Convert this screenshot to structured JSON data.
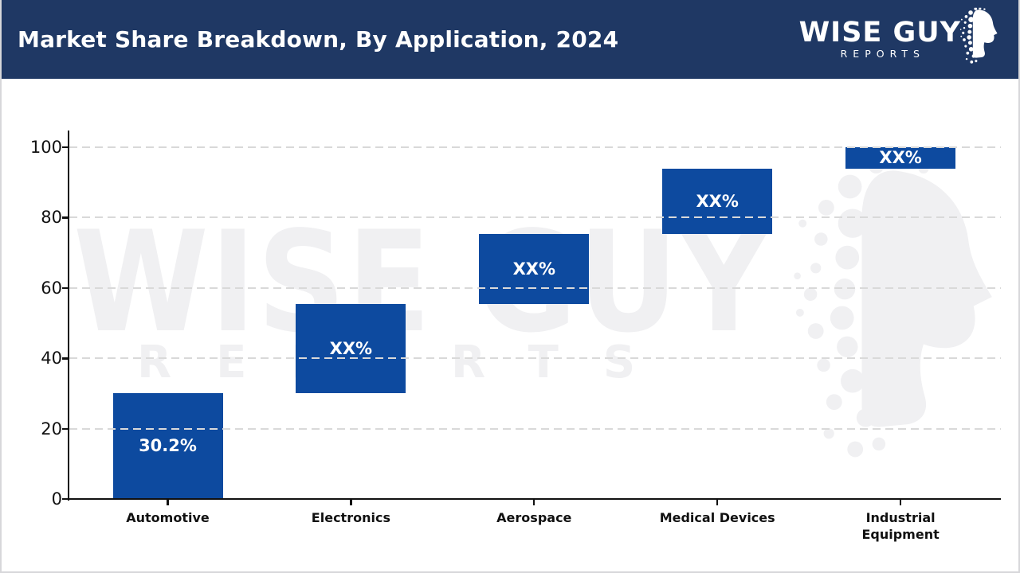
{
  "header": {
    "title": "Market Share Breakdown, By Application, 2024",
    "bg_color": "#1f3864",
    "logo": {
      "line1": "WISE GUY",
      "line2": "REPORTS"
    }
  },
  "watermark": {
    "line1": "WISE GUY",
    "line2": "REPORTS"
  },
  "chart_data": {
    "type": "bar",
    "subtype": "waterfall",
    "title": "Market Share Breakdown, By Application, 2024",
    "categories": [
      "Automotive",
      "Electronics",
      "Aerospace",
      "Medical Devices",
      "Industrial Equipment"
    ],
    "bars": [
      {
        "category": "Automotive",
        "start": 0,
        "end": 30.2,
        "label": "30.2%"
      },
      {
        "category": "Electronics",
        "start": 30.2,
        "end": 55.5,
        "label": "XX%"
      },
      {
        "category": "Aerospace",
        "start": 55.5,
        "end": 75.4,
        "label": "XX%"
      },
      {
        "category": "Medical Devices",
        "start": 75.4,
        "end": 94.0,
        "label": "XX%"
      },
      {
        "category": "Industrial Equipment",
        "start": 94.0,
        "end": 100.0,
        "label": "XX%"
      }
    ],
    "y_ticks": [
      0,
      20,
      40,
      60,
      80,
      100
    ],
    "ylim": [
      0,
      105
    ],
    "xlabel": "",
    "ylabel": "",
    "grid": true,
    "gridline_style": "dashed",
    "legend": false,
    "bar_color": "#0d4a9f",
    "gridline_color": "#d9d9d9",
    "axis_color": "#111111",
    "bar_label_color": "#ffffff"
  }
}
